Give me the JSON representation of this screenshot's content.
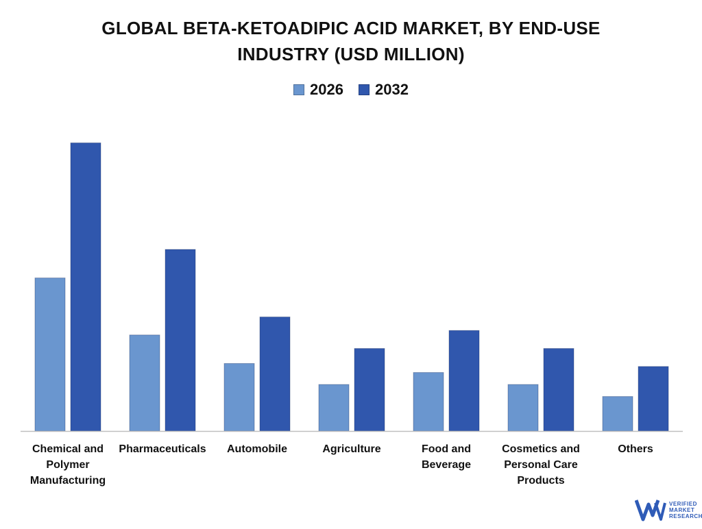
{
  "chart_data": {
    "type": "bar",
    "title": "GLOBAL BETA-KETOADIPIC ACID MARKET, BY END-USE INDUSTRY (USD MILLION)",
    "categories": [
      "Chemical and Polymer Manufacturing",
      "Pharmaceuticals",
      "Automobile",
      "Agriculture",
      "Food and Beverage",
      "Cosmetics and Personal Care Products",
      "Others"
    ],
    "category_label_lines": [
      [
        "Chemical and",
        "Polymer",
        "Manufacturing"
      ],
      [
        "Pharmaceuticals"
      ],
      [
        "Automobile"
      ],
      [
        "Agriculture"
      ],
      [
        "Food and",
        "Beverage"
      ],
      [
        "Cosmetics and",
        "Personal Care",
        "Products"
      ],
      [
        "Others"
      ]
    ],
    "series": [
      {
        "name": "2026",
        "color": "#6a96cf",
        "values": [
          51,
          32,
          22.5,
          15.5,
          19.5,
          15.5,
          11.5
        ]
      },
      {
        "name": "2032",
        "color": "#3057ad",
        "values": [
          96,
          60.5,
          38,
          27.5,
          33.5,
          27.5,
          21.5
        ]
      }
    ],
    "ylim": [
      0,
      100
    ],
    "xlabel": "",
    "ylabel": "",
    "grid": false,
    "legend_position": "top-center"
  },
  "watermark": {
    "lines": [
      "VERIFIED",
      "MARKET",
      "RESEARCH"
    ],
    "mark": "VM",
    "color": "#2f5bb7"
  }
}
